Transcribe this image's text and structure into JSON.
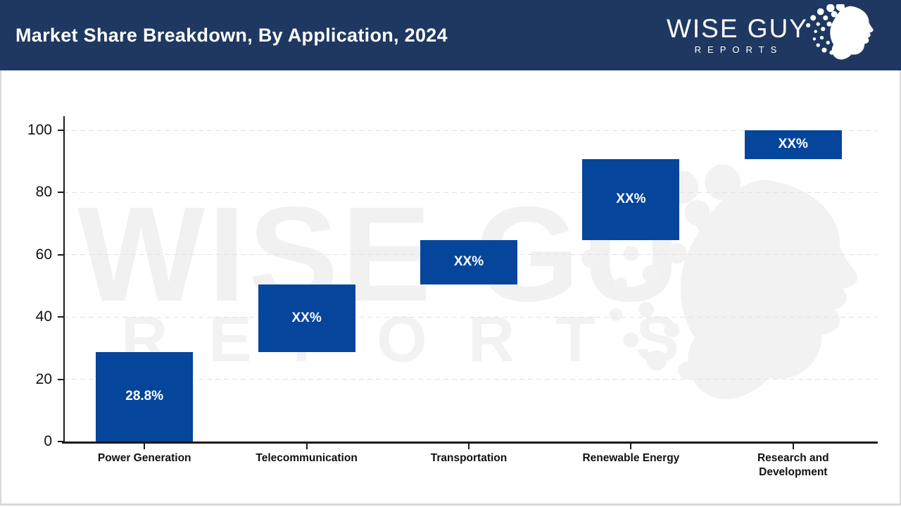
{
  "header": {
    "title": "Market Share Breakdown, By Application, 2024",
    "logo": {
      "name": "WISE GUY",
      "subtitle": "REPORTS"
    }
  },
  "watermark": {
    "name": "WISE GUY",
    "subtitle": "REPORTS"
  },
  "chart_data": {
    "type": "bar",
    "subtype": "floating-waterfall",
    "title": "Market Share Breakdown, By Application, 2024",
    "categories": [
      "Power Generation",
      "Telecommunication",
      "Transportation",
      "Renewable Energy",
      "Research and Development"
    ],
    "bars": [
      {
        "category": "Power Generation",
        "start": 0,
        "end": 28.8,
        "label": "28.8%"
      },
      {
        "category": "Telecommunication",
        "start": 28.8,
        "end": 50.4,
        "label": "XX%"
      },
      {
        "category": "Transportation",
        "start": 50.4,
        "end": 64.8,
        "label": "XX%"
      },
      {
        "category": "Renewable Energy",
        "start": 64.8,
        "end": 90.8,
        "label": "XX%"
      },
      {
        "category": "Research and Development",
        "start": 90.8,
        "end": 100,
        "label": "XX%"
      }
    ],
    "yticks": [
      0,
      20,
      40,
      60,
      80,
      100
    ],
    "ylim": [
      0,
      104.5
    ],
    "xlabel": "",
    "ylabel": "",
    "legend": null,
    "grid": {
      "horizontal": true,
      "style": "dashed"
    },
    "colors": {
      "bar": "#05459c",
      "bar_label": "#ffffff",
      "axis": "#1a1a1a",
      "tick_label": "#111111",
      "header_bg": "#1f3862",
      "watermark": "#f1f1f1",
      "card_border": "#d9d9d9"
    }
  }
}
